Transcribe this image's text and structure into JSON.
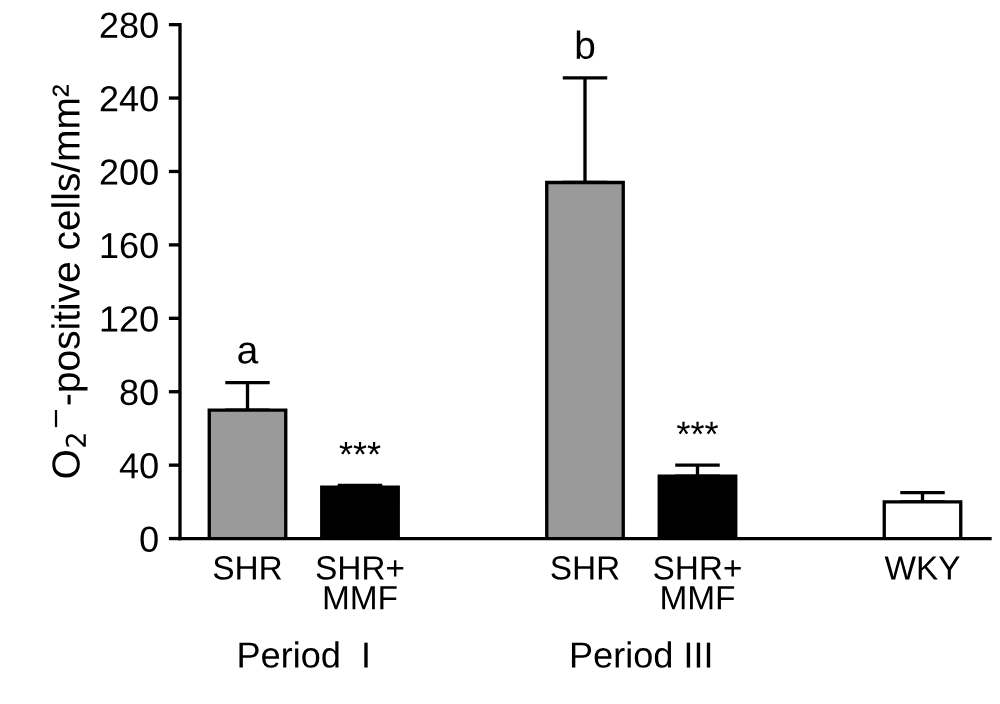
{
  "chart_data": {
    "type": "bar",
    "ylabel": "O$_{2}$$^{−}$-positive cells/mm²",
    "categories": [
      "SHR",
      "SHR+\nMMF",
      null,
      "SHR",
      "SHR+\nMMF",
      null,
      "WKY"
    ],
    "values": [
      70,
      28,
      null,
      194,
      34,
      null,
      20
    ],
    "errors": [
      15,
      1,
      null,
      57,
      6,
      null,
      5
    ],
    "colors": [
      "#9a9a9a",
      "#000000",
      "#9a9a9a",
      "#9a9a9a",
      "#000000",
      "#9a9a9a",
      "#ffffff"
    ],
    "ylim": [
      0,
      280
    ],
    "yticks": [
      0,
      40,
      80,
      120,
      160,
      200,
      240,
      280
    ],
    "grid": false,
    "legend": false,
    "annotations": [
      {
        "text": "a",
        "y": 85
      },
      {
        "text": "***",
        "y": 29
      },
      {
        "text": "b",
        "y": 251
      },
      {
        "text": "***",
        "y": 40
      },
      "Period  I",
      "Period III"
    ]
  }
}
